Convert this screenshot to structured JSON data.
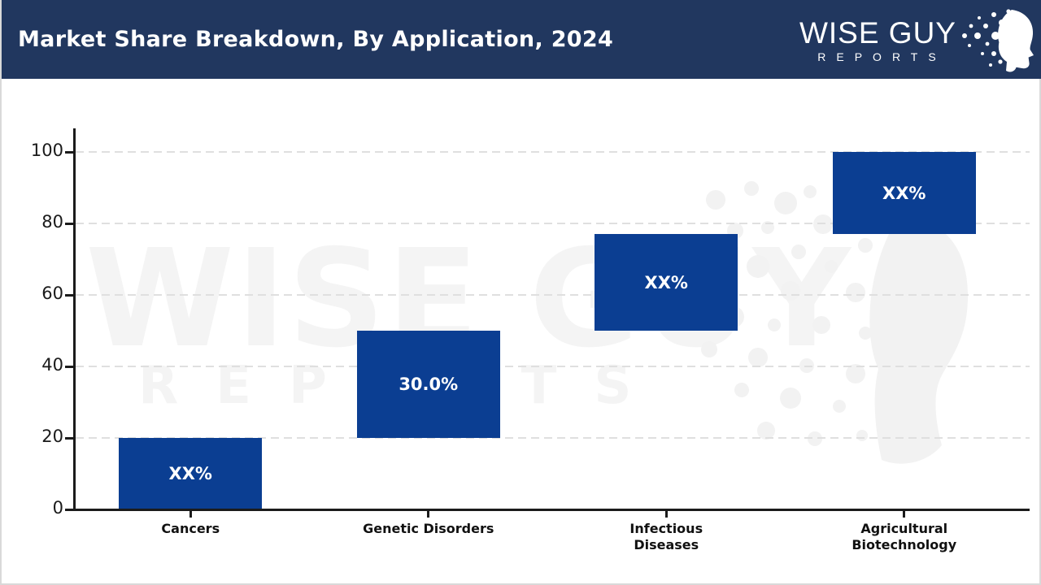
{
  "header": {
    "title": "Market Share Breakdown, By Application, 2024",
    "logo_line1": "WISE GUY",
    "logo_line2": "REPORTS",
    "bg_color": "#21375f"
  },
  "watermark": {
    "line1": "WISE GUY",
    "line2": "REPORTS"
  },
  "chart_data": {
    "type": "bar",
    "subtype": "floating-waterfall",
    "title": "Market Share Breakdown, By Application, 2024",
    "categories": [
      "Cancers",
      "Genetic Disorders",
      "Infectious\nDiseases",
      "Agricultural\nBiotechnology"
    ],
    "segments": [
      {
        "category": "Cancers",
        "start": 0,
        "end": 20,
        "label": "XX%"
      },
      {
        "category": "Genetic Disorders",
        "start": 20,
        "end": 50,
        "label": "30.0%"
      },
      {
        "category": "Infectious\nDiseases",
        "start": 50,
        "end": 77,
        "label": "XX%"
      },
      {
        "category": "Agricultural\nBiotechnology",
        "start": 77,
        "end": 100,
        "label": "XX%"
      }
    ],
    "ylim": [
      0,
      100
    ],
    "yticks": [
      0,
      20,
      40,
      60,
      80,
      100
    ],
    "xlabel": "",
    "ylabel": "",
    "grid": "horizontal-dashed",
    "legend": "none",
    "bar_color": "#0b3e92",
    "bar_label_color": "#ffffff",
    "axis_color": "#1b1b1b"
  }
}
